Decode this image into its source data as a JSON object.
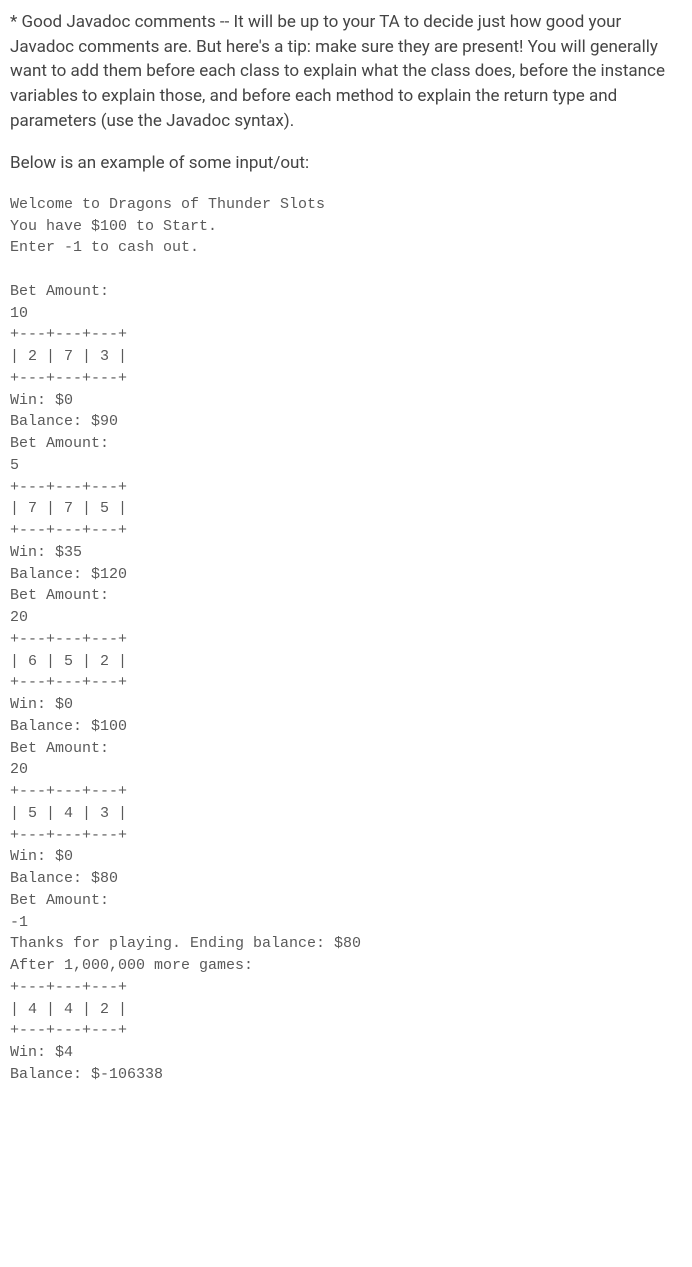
{
  "para1": "* Good Javadoc comments -- It will be up to your TA to decide just how good your Javadoc comments are. But here's a tip: make sure they are present! You will generally want to add them before each class to explain what the class does, before the instance variables to explain those, and before each method to explain the return type and parameters (use the Javadoc syntax).",
  "para2": "Below is an example of some input/out:",
  "code": "Welcome to Dragons of Thunder Slots\nYou have $100 to Start.\nEnter -1 to cash out.\n\nBet Amount:\n10\n+---+---+---+\n| 2 | 7 | 3 |\n+---+---+---+\nWin: $0\nBalance: $90\nBet Amount:\n5\n+---+---+---+\n| 7 | 7 | 5 |\n+---+---+---+\nWin: $35\nBalance: $120\nBet Amount:\n20\n+---+---+---+\n| 6 | 5 | 2 |\n+---+---+---+\nWin: $0\nBalance: $100\nBet Amount:\n20\n+---+---+---+\n| 5 | 4 | 3 |\n+---+---+---+\nWin: $0\nBalance: $80\nBet Amount:\n-1\nThanks for playing. Ending balance: $80\nAfter 1,000,000 more games:\n+---+---+---+\n| 4 | 4 | 2 |\n+---+---+---+\nWin: $4\nBalance: $-106338"
}
